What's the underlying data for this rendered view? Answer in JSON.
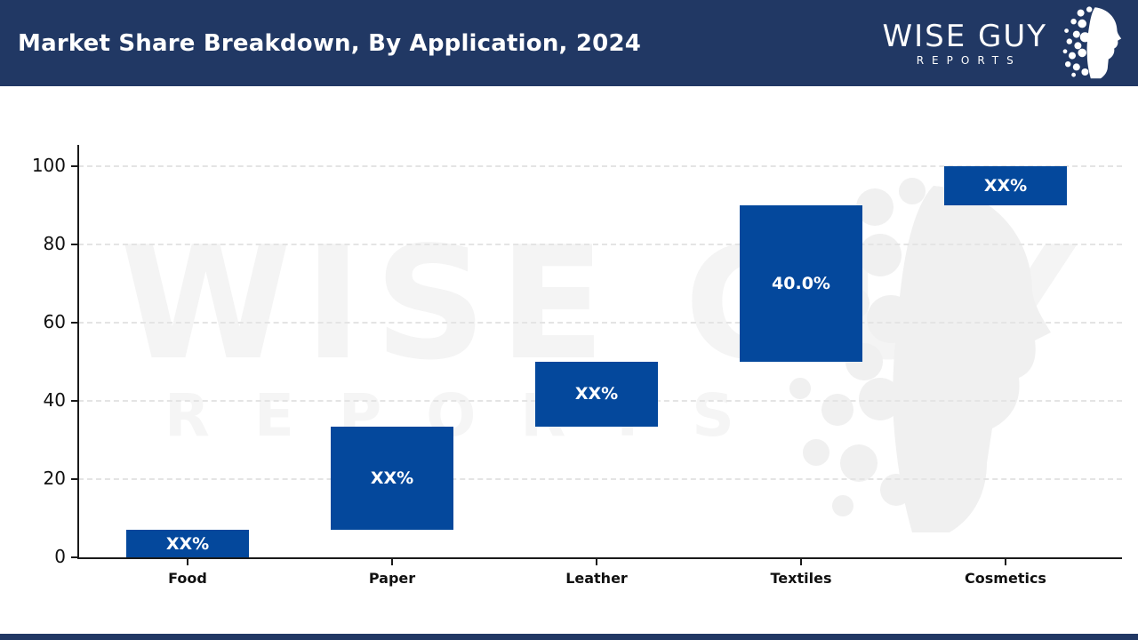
{
  "header": {
    "title": "Market Share Breakdown, By Application, 2024",
    "logo": {
      "line1": "WISE GUY",
      "line2": "REPORTS"
    }
  },
  "watermark": {
    "line1": "WISE GUY",
    "line2": "REPORTS"
  },
  "colors": {
    "header_bg": "#213864",
    "footer_bg": "#213864",
    "bar": "#04489c",
    "grid": "#e4e4e4",
    "bar_label": "#ffffff",
    "axis": "#1a1a1a",
    "watermark": "#f4f4f4"
  },
  "chart_data": {
    "type": "bar",
    "subtype": "waterfall",
    "title": "Market Share Breakdown, By Application, 2024",
    "categories": [
      "Food",
      "Paper",
      "Leather",
      "Textiles",
      "Cosmetics"
    ],
    "segments": [
      {
        "category": "Food",
        "start": 0,
        "end": 7,
        "label": "XX%"
      },
      {
        "category": "Paper",
        "start": 7,
        "end": 33.5,
        "label": "XX%"
      },
      {
        "category": "Leather",
        "start": 33.5,
        "end": 50,
        "label": "XX%"
      },
      {
        "category": "Textiles",
        "start": 50,
        "end": 90,
        "label": "40.0%"
      },
      {
        "category": "Cosmetics",
        "start": 90,
        "end": 100,
        "label": "XX%"
      }
    ],
    "xlabel": "",
    "ylabel": "",
    "yticks": [
      0,
      20,
      40,
      60,
      80,
      100
    ],
    "ylim": [
      0,
      105
    ],
    "grid": "horizontal-dashed",
    "legend": "none",
    "bar_color": "#04489c"
  }
}
